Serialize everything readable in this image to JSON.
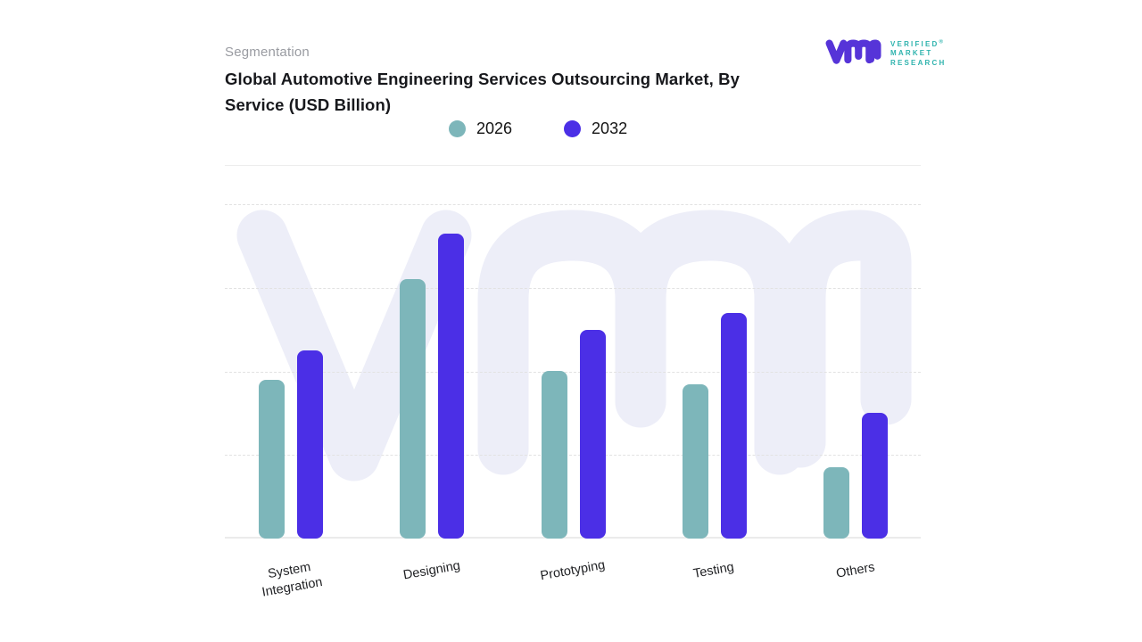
{
  "header": {
    "eyebrow": "Segmentation",
    "title": "Global Automotive Engineering Services Outsourcing Market, By Service (USD Billion)"
  },
  "logo": {
    "glyph": "vmr-monogram",
    "line1": "VERIFIED",
    "registered_mark": "®",
    "line2": "MARKET",
    "line3": "RESEARCH",
    "glyph_color": "#5634d8",
    "text_color": "#2fb3ae"
  },
  "watermark": {
    "glyph": "vmr-monogram-watermark",
    "color": "#edeef8"
  },
  "chart_data": {
    "type": "bar",
    "title": "Global Automotive Engineering Services Outsourcing Market, By Service (USD Billion)",
    "categories": [
      "System Integration",
      "Designing",
      "Prototyping",
      "Testing",
      "Others"
    ],
    "series": [
      {
        "name": "2026",
        "color": "#7db6ba",
        "values": [
          1.9,
          3.1,
          2.0,
          1.85,
          0.85
        ]
      },
      {
        "name": "2032",
        "color": "#4b2fe6",
        "values": [
          2.25,
          3.65,
          2.5,
          2.7,
          1.5
        ]
      }
    ],
    "xlabel": "",
    "ylabel": "",
    "ylim": [
      0,
      4.45
    ],
    "y_axis_tick_labels_visible": false,
    "gridlines": "horizontal-dashed, every 1 unit",
    "legend_position": "top-center",
    "note": "values estimated from unlabeled gridlines (1 unit per gridline interval)"
  }
}
